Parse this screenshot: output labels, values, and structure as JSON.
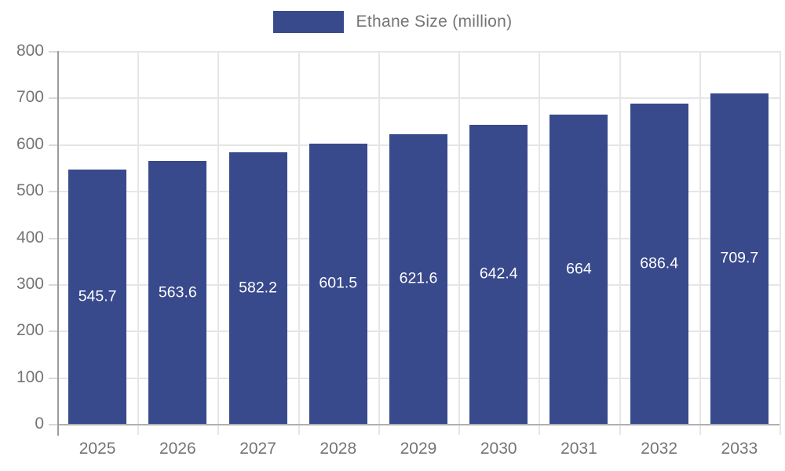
{
  "chart_data": {
    "type": "bar",
    "title": "Ethane Size (million)",
    "legend": {
      "label": "Ethane Size (million)",
      "position": "top-center"
    },
    "categories": [
      "2025",
      "2026",
      "2027",
      "2028",
      "2029",
      "2030",
      "2031",
      "2032",
      "2033"
    ],
    "series": [
      {
        "name": "Ethane Size (million)",
        "values": [
          545.7,
          563.6,
          582.2,
          601.5,
          621.6,
          642.4,
          664,
          686.4,
          709.7
        ]
      }
    ],
    "value_labels": [
      "545.7",
      "563.6",
      "582.2",
      "601.5",
      "621.6",
      "642.4",
      "664",
      "686.4",
      "709.7"
    ],
    "xlabel": "",
    "ylabel": "",
    "ylim": [
      0,
      800
    ],
    "ytick_step": 100,
    "ytick_labels": [
      "0",
      "100",
      "200",
      "300",
      "400",
      "500",
      "600",
      "700",
      "800"
    ],
    "grid": true,
    "colors": {
      "bar": "#38498C",
      "value_label_text": "#ffffff",
      "axis_text": "#757575",
      "gridline": "#e6e6e6",
      "axis_line": "#9c9c9c",
      "background": "#ffffff"
    }
  }
}
